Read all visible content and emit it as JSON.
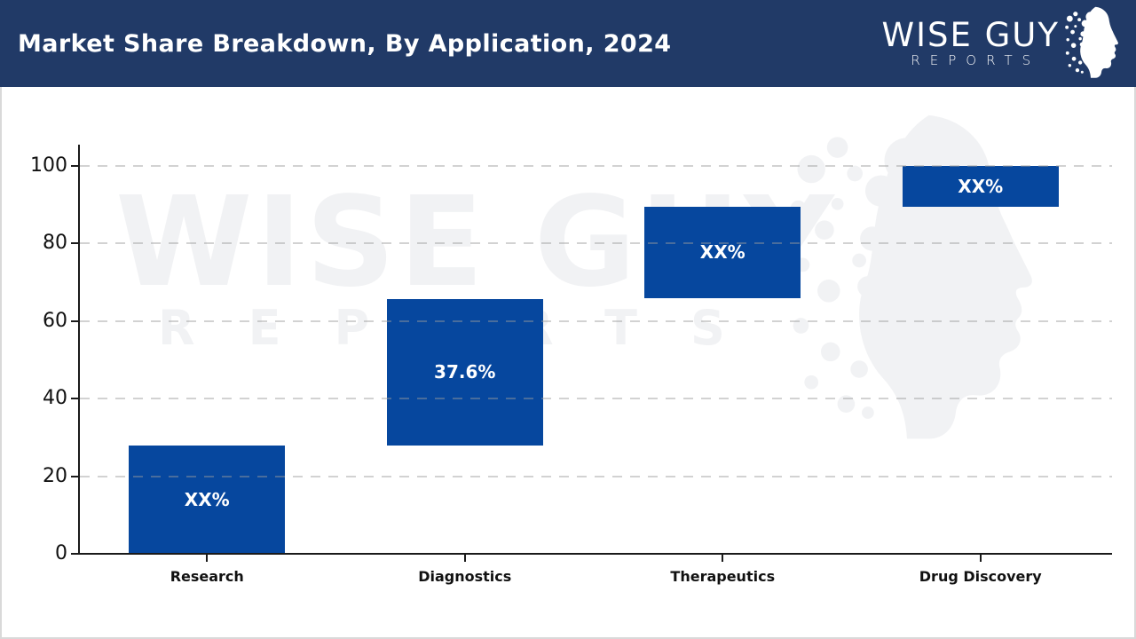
{
  "header": {
    "title": "Market Share Breakdown, By Application, 2024",
    "logo": {
      "primary": "WISE GUY",
      "secondary": "REPORTS"
    }
  },
  "watermark": {
    "primary": "WISE GUY",
    "secondary": "REPORTS"
  },
  "chart_data": {
    "type": "bar",
    "subtype": "floating_waterfall",
    "title": "Market Share Breakdown, By Application, 2024",
    "categories": [
      "Research",
      "Diagnostics",
      "Therapeutics",
      "Drug Discovery"
    ],
    "segments": [
      {
        "category": "Research",
        "start": 0,
        "end": 28,
        "value_label": "XX%"
      },
      {
        "category": "Diagnostics",
        "start": 28,
        "end": 65.6,
        "value_label": "37.6%"
      },
      {
        "category": "Therapeutics",
        "start": 66,
        "end": 89.5,
        "value_label": "XX%"
      },
      {
        "category": "Drug Discovery",
        "start": 89.5,
        "end": 100,
        "value_label": "XX%"
      }
    ],
    "yticks": [
      0,
      20,
      40,
      60,
      80,
      100
    ],
    "ylim": [
      0,
      105.5
    ],
    "xlabel": "",
    "ylabel": "",
    "grid": "horizontal-dashed",
    "legend": "none",
    "bar_color": "#06479e",
    "bar_label_color": "#ffffff",
    "axis_color": "#1a1a1a",
    "gridline_color": "#d9d9d9"
  },
  "colors": {
    "header_bg": "#213a67",
    "header_text": "#ffffff",
    "page_bg": "#ffffff",
    "watermark": "#f1f2f4",
    "border": "#d9d9d9"
  }
}
